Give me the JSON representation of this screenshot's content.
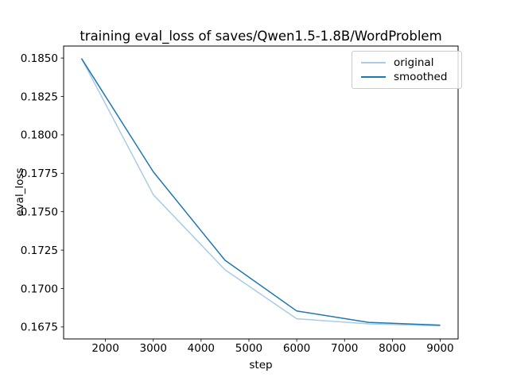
{
  "chart_data": {
    "type": "line",
    "title": "training eval_loss of saves/Qwen1.5-1.8B/WordProblem",
    "xlabel": "step",
    "ylabel": "eval_loss",
    "x": [
      1500,
      3000,
      4500,
      6000,
      7500,
      9000
    ],
    "series": [
      {
        "name": "original",
        "color": "#a9cbe3",
        "values": [
          0.18497,
          0.17611,
          0.17122,
          0.16803,
          0.1677,
          0.16757
        ]
      },
      {
        "name": "smoothed",
        "color": "#1f77b4",
        "values": [
          0.18497,
          0.1776,
          0.17184,
          0.16854,
          0.1678,
          0.16762
        ]
      }
    ],
    "xlim": [
      1125,
      9375
    ],
    "ylim": [
      0.16672,
      0.18578
    ],
    "x_ticks": [
      2000,
      3000,
      4000,
      5000,
      6000,
      7000,
      8000,
      9000
    ],
    "y_ticks": [
      0.1675,
      0.17,
      0.1725,
      0.175,
      0.1775,
      0.18,
      0.1825,
      0.185
    ],
    "y_tick_decimals": 4,
    "grid": false,
    "legend_position": "upper right",
    "line_width": 1.5,
    "axis_color": "#000000",
    "background_color": "#ffffff"
  }
}
